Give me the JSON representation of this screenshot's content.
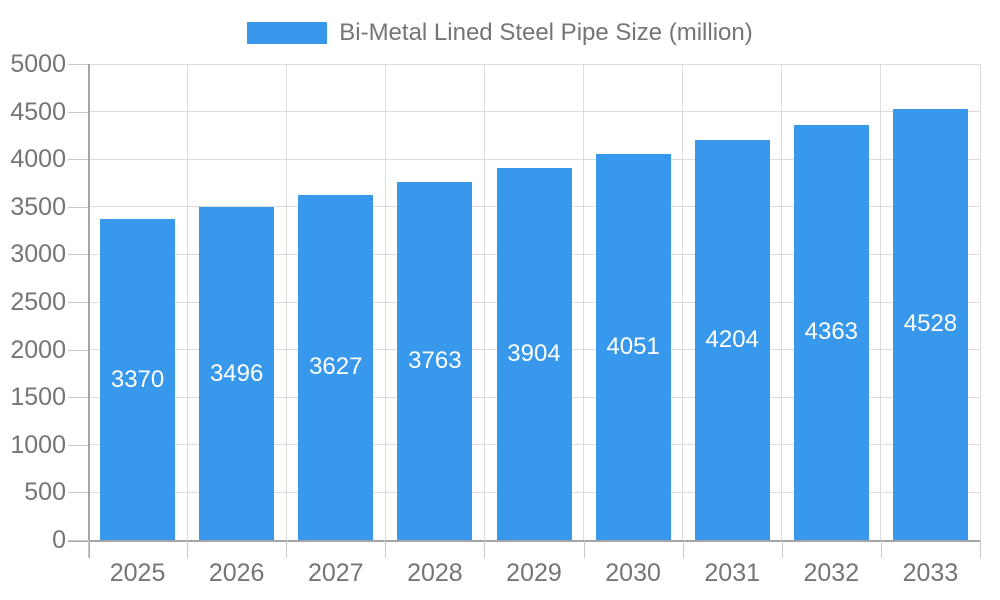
{
  "legend": {
    "label": "Bi-Metal Lined Steel Pipe Size (million)"
  },
  "chart_data": {
    "type": "bar",
    "title": "Bi-Metal Lined Steel Pipe Size (million)",
    "series_name": "Bi-Metal Lined Steel Pipe Size (million)",
    "categories": [
      "2025",
      "2026",
      "2027",
      "2028",
      "2029",
      "2030",
      "2031",
      "2032",
      "2033"
    ],
    "values": [
      3370,
      3496,
      3627,
      3763,
      3904,
      4051,
      4204,
      4363,
      4528
    ],
    "xlabel": "",
    "ylabel": "",
    "ylim": [
      0,
      5000
    ],
    "ytick_labels": [
      "0",
      "500",
      "1000",
      "1500",
      "2000",
      "2500",
      "3000",
      "3500",
      "4000",
      "4500",
      "5000"
    ],
    "grid": true,
    "legend_position": "top",
    "bar_labels_visible": true,
    "colors": {
      "bar": "#3898ec",
      "bar_label_text": "#ffffff",
      "axis_text": "#757575",
      "gridline": "#dcdcdc",
      "axis_line": "#a6a6a6",
      "background": "#ffffff"
    }
  }
}
